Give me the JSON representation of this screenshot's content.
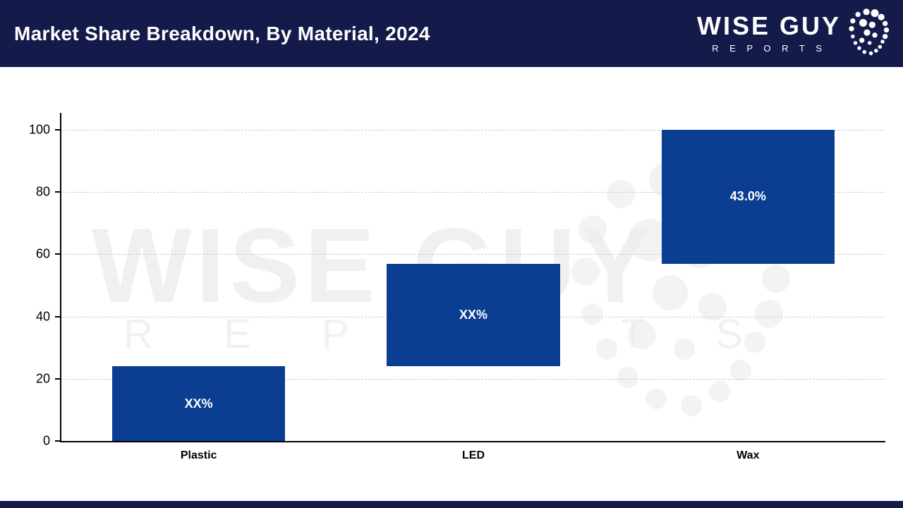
{
  "header": {
    "title": "Market Share Breakdown, By Material, 2024",
    "bg_color": "#141b4a",
    "logo": {
      "line1": "WISE GUY",
      "line2": "R E P O R T S"
    }
  },
  "watermark": {
    "line1": "WISE GUY",
    "line2": "R E P O R T S"
  },
  "chart_data": {
    "type": "bar",
    "subtype": "floating-segment-bars (waterfall style)",
    "title": "Market Share Breakdown, By Material, 2024",
    "categories": [
      "Plastic",
      "LED",
      "Wax"
    ],
    "bars": [
      {
        "category": "Plastic",
        "start": 0,
        "end": 24,
        "label": "XX%"
      },
      {
        "category": "LED",
        "start": 24,
        "end": 57,
        "label": "XX%"
      },
      {
        "category": "Wax",
        "start": 57,
        "end": 100,
        "label": "43.0%"
      }
    ],
    "yticks": [
      0,
      20,
      40,
      60,
      80,
      100
    ],
    "ylim": [
      0,
      100
    ],
    "xlabel": "",
    "ylabel": "",
    "bar_color": "#0b3d91",
    "bar_width_pct": 21,
    "grid": "horizontal dashed",
    "legend": "none"
  }
}
